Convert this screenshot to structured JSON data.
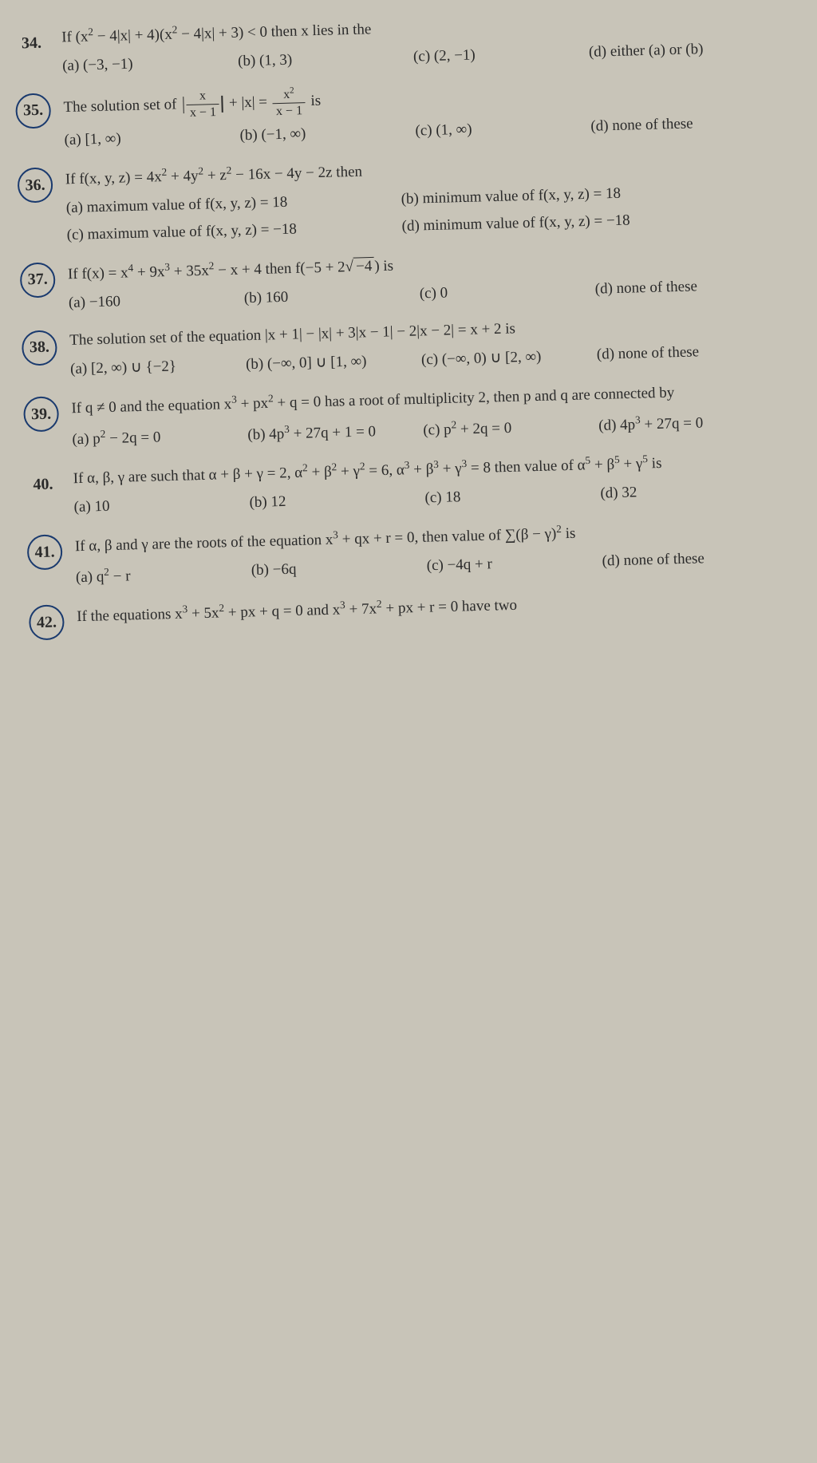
{
  "questions": [
    {
      "num": "34.",
      "circled": false,
      "text_html": "If (x² − 4|x| + 4)(x² − 4|x| + 3) < 0 then x lies in the",
      "options": [
        {
          "label": "(a)",
          "text": "(−3, −1)"
        },
        {
          "label": "(b)",
          "text": "(1, 3)"
        },
        {
          "label": "(c)",
          "text": "(2, −1)"
        },
        {
          "label": "(d)",
          "text": "either (a) or (b)"
        }
      ]
    },
    {
      "num": "35.",
      "circled": true,
      "text_html": "The solution set of |x/(x−1)| + |x| = x²/(x−1) is",
      "options": [
        {
          "label": "(a)",
          "text": "[1, ∞)"
        },
        {
          "label": "(b)",
          "text": "(−1, ∞)"
        },
        {
          "label": "(c)",
          "text": "(1, ∞)"
        },
        {
          "label": "(d)",
          "text": "none of these"
        }
      ]
    },
    {
      "num": "36.",
      "circled": true,
      "text_html": "If f(x, y, z) = 4x² + 4y² + z² − 16x − 4y − 2z then",
      "options": [
        {
          "label": "(a)",
          "text": "maximum value of f(x, y, z) = 18"
        },
        {
          "label": "(b)",
          "text": "minimum value of f(x, y, z) = 18"
        },
        {
          "label": "(c)",
          "text": "maximum value of f(x, y, z) = −18"
        },
        {
          "label": "(d)",
          "text": "minimum value of f(x, y, z) = −18"
        }
      ]
    },
    {
      "num": "37.",
      "circled": true,
      "text_html": "If f(x) = x⁴ + 9x³ + 35x² − x + 4 then f(−5 + 2√−4) is",
      "options": [
        {
          "label": "(a)",
          "text": "−160"
        },
        {
          "label": "(b)",
          "text": "160"
        },
        {
          "label": "(c)",
          "text": "0"
        },
        {
          "label": "(d)",
          "text": "none of these"
        }
      ]
    },
    {
      "num": "38.",
      "circled": true,
      "text_html": "The solution set of the equation |x + 1| − |x| + 3|x − 1| − 2|x − 2| = x + 2 is",
      "options": [
        {
          "label": "(a)",
          "text": "[2, ∞) ∪ {−2}"
        },
        {
          "label": "(b)",
          "text": "(−∞, 0] ∪ [1, ∞)"
        },
        {
          "label": "(c)",
          "text": "(−∞, 0) ∪ [2, ∞)"
        },
        {
          "label": "(d)",
          "text": "none of these"
        }
      ]
    },
    {
      "num": "39.",
      "circled": true,
      "text_html": "If q ≠ 0 and the equation x³ + px² + q = 0 has a root of multiplicity 2, then p and q are connected by",
      "options": [
        {
          "label": "(a)",
          "text": "p² − 2q = 0"
        },
        {
          "label": "(b)",
          "text": "4p³ + 27q + 1 = 0"
        },
        {
          "label": "(c)",
          "text": "p² + 2q = 0"
        },
        {
          "label": "(d)",
          "text": "4p³ + 27q = 0"
        }
      ]
    },
    {
      "num": "40.",
      "circled": false,
      "text_html": "If α, β, γ are such that α + β + γ = 2, α² + β² + γ² = 6, α³ + β³ + γ³ = 8 then value of α⁵ + β⁵ + γ⁵ is",
      "options": [
        {
          "label": "(a)",
          "text": "10"
        },
        {
          "label": "(b)",
          "text": "12"
        },
        {
          "label": "(c)",
          "text": "18"
        },
        {
          "label": "(d)",
          "text": "32"
        }
      ]
    },
    {
      "num": "41.",
      "circled": true,
      "text_html": "If α, β and γ are the roots of the equation x³ + qx + r = 0, then value of ∑(β − γ)² is",
      "options": [
        {
          "label": "(a)",
          "text": "q² − r"
        },
        {
          "label": "(b)",
          "text": "−6q"
        },
        {
          "label": "(c)",
          "text": "−4q + r"
        },
        {
          "label": "(d)",
          "text": "none of these"
        }
      ]
    },
    {
      "num": "42.",
      "circled": true,
      "text_html": "If the equations x³ + 5x² + px + q = 0 and x³ + 7x² + px + r = 0 have two",
      "options": []
    }
  ],
  "colors": {
    "background": "#c8c4b8",
    "text": "#2a2a2a",
    "circle": "#1a3a6e"
  },
  "fonts": {
    "body_size": 19,
    "qnum_size": 20
  }
}
